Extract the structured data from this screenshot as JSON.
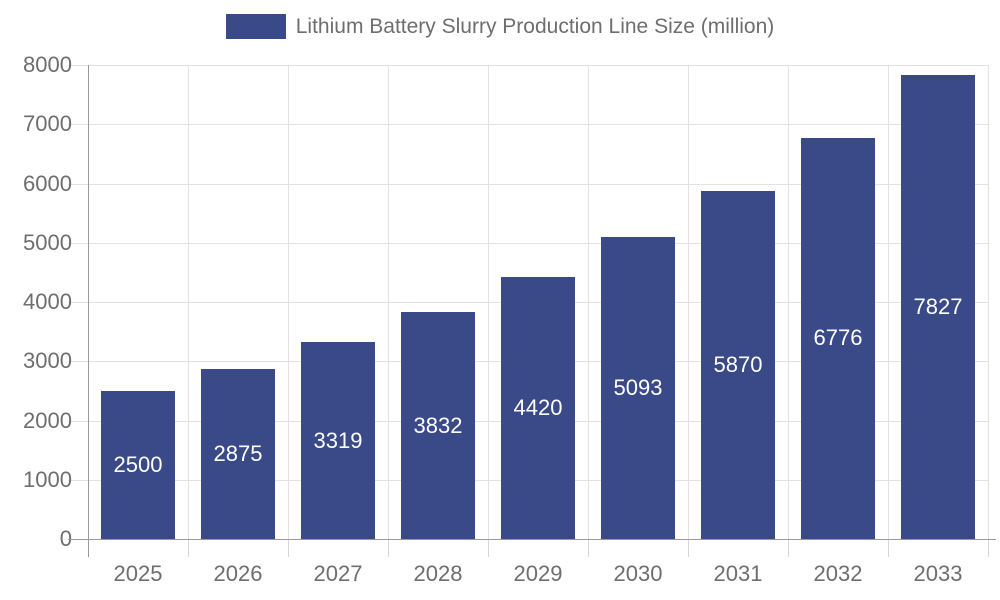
{
  "legend": {
    "label": "Lithium Battery Slurry Production Line Size (million)"
  },
  "colors": {
    "bar": "#3A4A88",
    "bar_label": "#FFFFFF",
    "axis_text": "#6E6E6E",
    "grid_line": "#E2E2E2",
    "tick_line": "#D6D6D6",
    "axis_line": "#999999",
    "background": "#FFFFFF"
  },
  "chart_data": {
    "type": "bar",
    "title": "Lithium Battery Slurry Production Line Size (million)",
    "series_name": "Lithium Battery Slurry Production Line Size (million)",
    "categories": [
      "2025",
      "2026",
      "2027",
      "2028",
      "2029",
      "2030",
      "2031",
      "2032",
      "2033"
    ],
    "values": [
      2500,
      2875,
      3319,
      3832,
      4420,
      5093,
      5870,
      6776,
      7827
    ],
    "xlabel": "",
    "ylabel": "",
    "ylim": [
      0,
      8000
    ],
    "yticks": [
      0,
      1000,
      2000,
      3000,
      4000,
      5000,
      6000,
      7000,
      8000
    ],
    "grid": true,
    "legend_position": "top-center",
    "bar_label_position": "inside-center",
    "bar_label_color": "#FFFFFF"
  }
}
